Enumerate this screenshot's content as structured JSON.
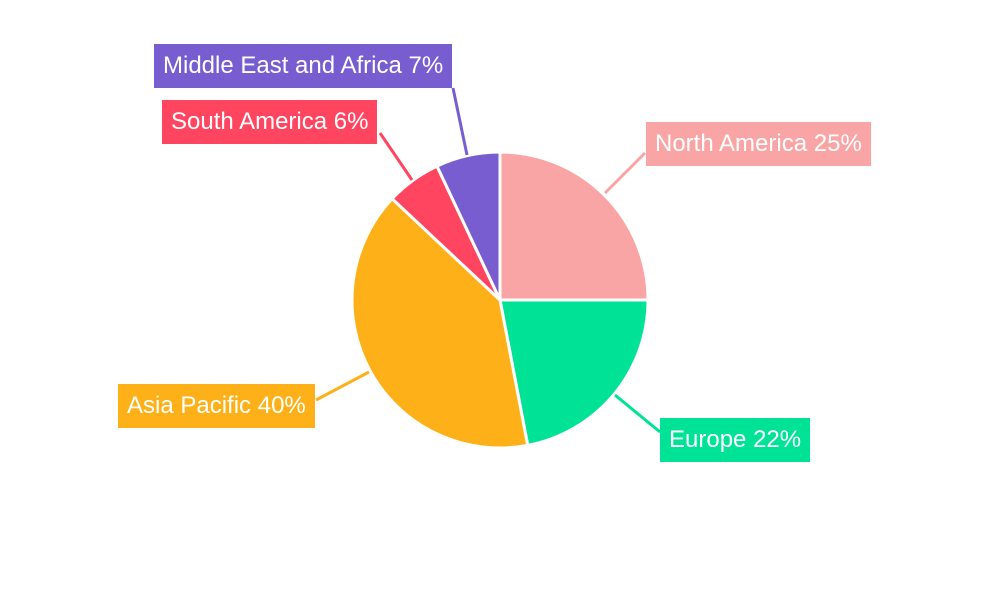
{
  "chart_data": {
    "type": "pie",
    "categories": [
      "North America",
      "Europe",
      "Asia Pacific",
      "South America",
      "Middle East and Africa"
    ],
    "values": [
      25,
      22,
      40,
      6,
      7
    ],
    "unit": "%",
    "colors": [
      "#F9A5A5",
      "#00E396",
      "#FEB019",
      "#FF4560",
      "#775DD0"
    ],
    "start_angle": "top, clockwise",
    "legend": "none (outside labels with leader lines)"
  }
}
